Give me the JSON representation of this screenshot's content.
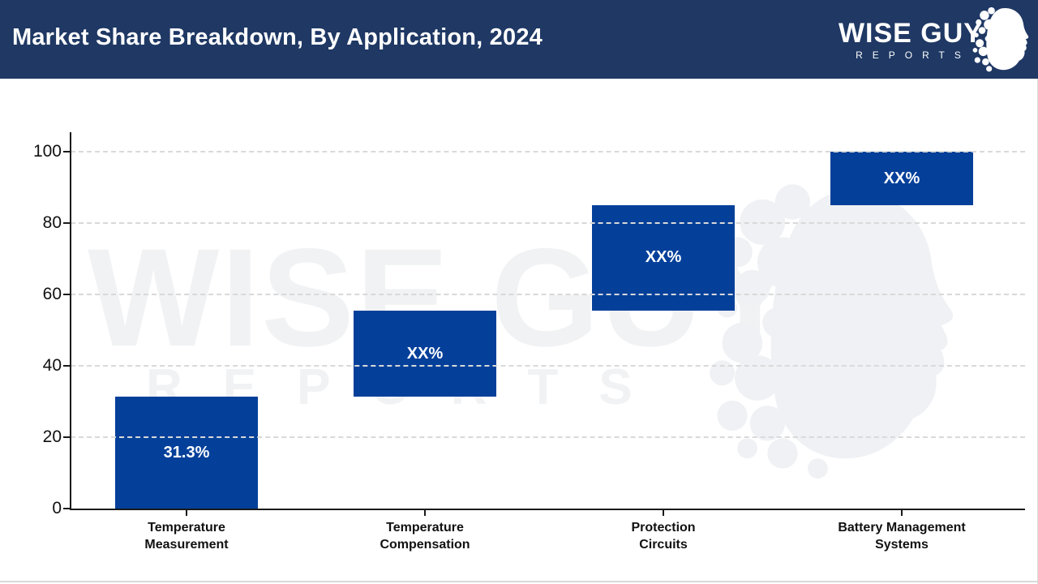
{
  "header": {
    "title": "Market Share Breakdown, By Application, 2024",
    "logo": {
      "brand": "WISE GUY",
      "sub": "REPORTS"
    }
  },
  "watermark": {
    "brand": "WISE GUY",
    "sub": "REPORTS"
  },
  "chart_data": {
    "type": "bar",
    "variant": "waterfall",
    "title": "Market Share Breakdown, By Application, 2024",
    "categories": [
      "Temperature Measurement",
      "Temperature Compensation",
      "Protection Circuits",
      "Battery Management Systems"
    ],
    "bars": [
      {
        "id": "temperature-measurement",
        "line1": "Temperature",
        "line2": "Measurement",
        "start": 0,
        "end": 31.3,
        "label": "31.3%"
      },
      {
        "id": "temperature-compensation",
        "line1": "Temperature",
        "line2": "Compensation",
        "start": 31.3,
        "end": 55.5,
        "label": "XX%"
      },
      {
        "id": "protection-circuits",
        "line1": "Protection",
        "line2": "Circuits",
        "start": 55.5,
        "end": 85,
        "label": "XX%"
      },
      {
        "id": "battery-management-systems",
        "line1": "Battery Management",
        "line2": "Systems",
        "start": 85,
        "end": 100,
        "label": "XX%"
      }
    ],
    "y_ticks": [
      0,
      20,
      40,
      60,
      80,
      100
    ],
    "ylim": [
      0,
      105
    ],
    "grid": {
      "style": "dashed",
      "axis": "y"
    },
    "legend": "none",
    "bar_color": "#04409a"
  },
  "colors": {
    "header_bg": "#1f3864",
    "bar": "#04409a",
    "bar_label": "#ffffff",
    "grid": "#d9d9d9",
    "axis": "#1a1a1a",
    "watermark": "#f1f2f4",
    "page_bg": "#ffffff"
  }
}
